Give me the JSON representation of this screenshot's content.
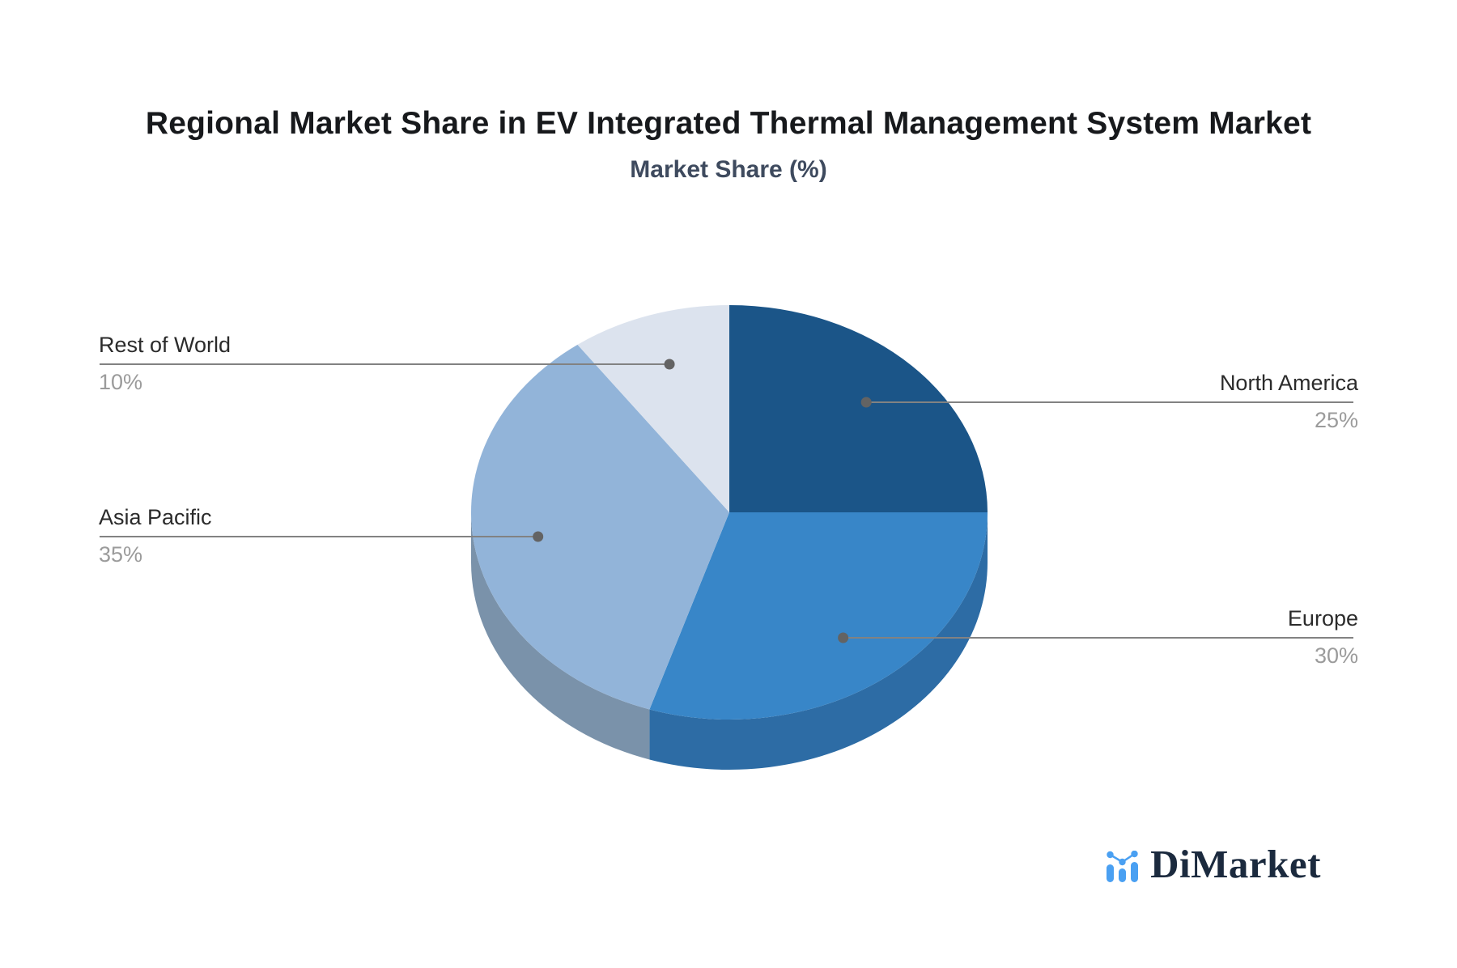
{
  "header": {
    "title": "Regional Market Share in EV Integrated Thermal Management System Market",
    "subtitle": "Market Share (%)"
  },
  "chart_data": {
    "type": "pie",
    "style": "3d",
    "title": "Regional Market Share in EV Integrated Thermal Management System Market",
    "subtitle": "Market Share (%)",
    "unit": "%",
    "start_angle": "12-o-clock",
    "direction": "clockwise",
    "legend_position": "callout-labels",
    "slices": [
      {
        "label": "North America",
        "value": 25,
        "display": "25%",
        "color": "#1b5588",
        "side_color": "#164a75",
        "label_side": "right"
      },
      {
        "label": "Europe",
        "value": 30,
        "display": "30%",
        "color": "#3886c8",
        "side_color": "#2d6ca5",
        "label_side": "right"
      },
      {
        "label": "Asia Pacific",
        "value": 35,
        "display": "35%",
        "color": "#92b4d9",
        "side_color": "#7a92aa",
        "label_side": "left"
      },
      {
        "label": "Rest of World",
        "value": 10,
        "display": "10%",
        "color": "#dce3ee",
        "side_color": "#b9c3d3",
        "label_side": "left"
      }
    ],
    "label_name_color": "#2b2b2b",
    "label_pct_color": "#9b9b9b",
    "leader_line_color": "#828282",
    "leader_dot_color": "#636363"
  },
  "branding": {
    "logo_text": "DiMarket",
    "logo_icon": "bar-line-chart-icon",
    "icon_color": "#4aa0f2",
    "text_color": "#1b2a3e"
  }
}
